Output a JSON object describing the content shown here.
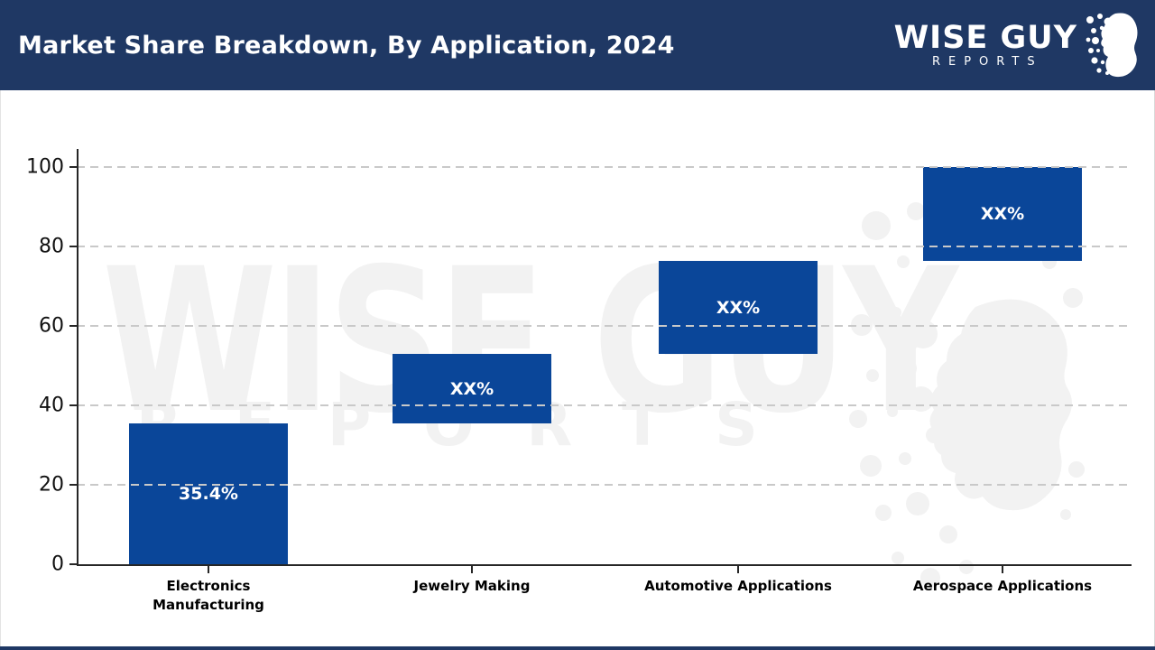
{
  "header": {
    "title": "Market Share Breakdown, By Application, 2024",
    "logo": {
      "wordmark": "WISE GUY",
      "subtext": "REPORTS"
    }
  },
  "watermark": {
    "wordmark": "WISE GUY",
    "subtext": "REPORTS"
  },
  "colors": {
    "header_bg": "#1f3864",
    "footer_bg": "#1f3864",
    "background": "#ffffff",
    "bar_fill": "#0a4699",
    "bar_label": "#ffffff",
    "grid_line": "#c9c9c9",
    "axis_line": "#262626",
    "tick_label": "#111111",
    "watermark": "#f2f2f2"
  },
  "chart_data": {
    "type": "bar",
    "subtype": "waterfall",
    "title": "Market Share Breakdown, By Application, 2024",
    "categories": [
      "Electronics Manufacturing",
      "Jewelry Making",
      "Automotive Applications",
      "Aerospace Applications"
    ],
    "bars": [
      {
        "category": "Electronics Manufacturing",
        "start": 0,
        "end": 35.4,
        "label": "35.4%"
      },
      {
        "category": "Jewelry Making",
        "start": 35.4,
        "end": 52.9,
        "label": "XX%"
      },
      {
        "category": "Automotive Applications",
        "start": 52.9,
        "end": 76.4,
        "label": "XX%"
      },
      {
        "category": "Aerospace Applications",
        "start": 76.4,
        "end": 100,
        "label": "XX%"
      }
    ],
    "ylim": [
      0,
      100
    ],
    "yticks": [
      0,
      20,
      40,
      60,
      80,
      100
    ],
    "xlabel": "",
    "ylabel": "",
    "grid": "horizontal-dashed",
    "legend": "none"
  }
}
